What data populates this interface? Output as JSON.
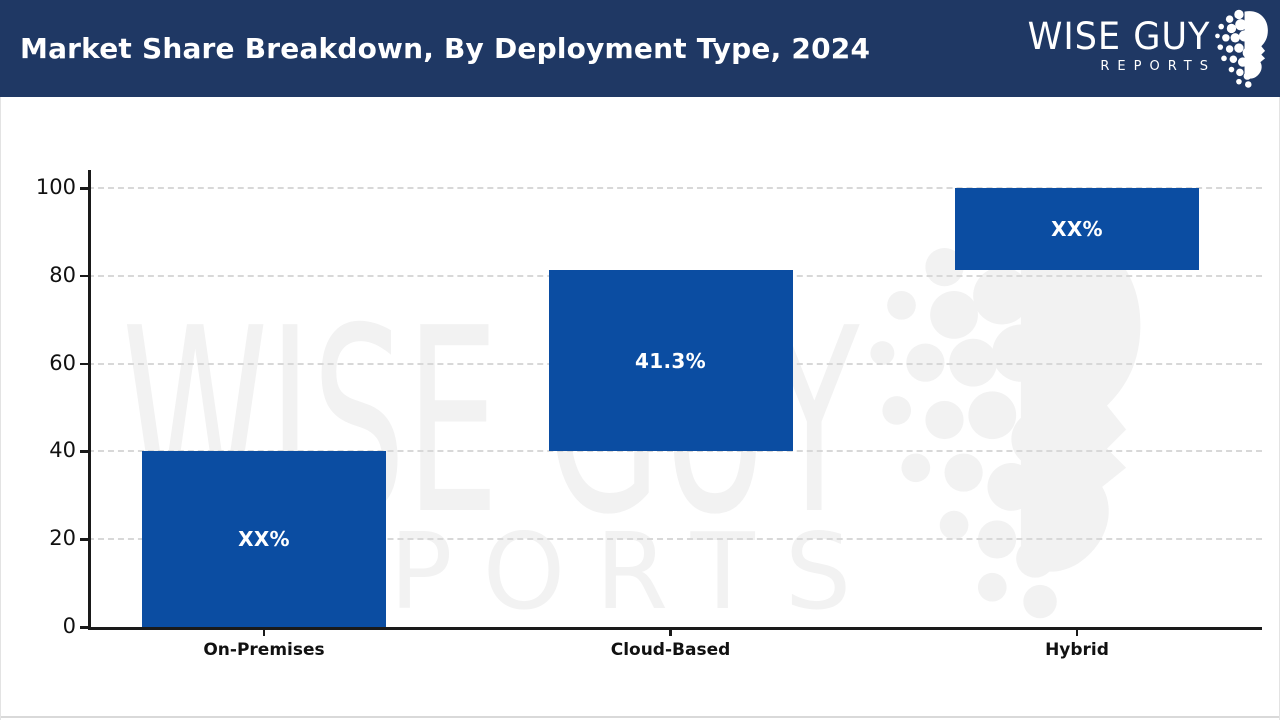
{
  "header": {
    "title": "Market Share Breakdown, By Deployment Type, 2024",
    "bg_color": "#1F3864",
    "logo": {
      "wordmark": "WISE GUY",
      "sub": "REPORTS",
      "face_icon": "dotted-face-profile"
    }
  },
  "watermark": {
    "wordmark": "WISE GUY",
    "sub": "REPORTS"
  },
  "chart_data": {
    "type": "bar",
    "subtype": "floating-waterfall",
    "title": "Market Share Breakdown, By Deployment Type, 2024",
    "categories": [
      "On-Premises",
      "Cloud-Based",
      "Hybrid"
    ],
    "segments": [
      {
        "category": "On-Premises",
        "start": 0,
        "end": 40,
        "label": "XX%"
      },
      {
        "category": "Cloud-Based",
        "start": 40,
        "end": 81.3,
        "label": "41.3%"
      },
      {
        "category": "Hybrid",
        "start": 81.3,
        "end": 100,
        "label": "XX%"
      }
    ],
    "values": [
      40,
      41.3,
      18.7
    ],
    "bar_labels": [
      "XX%",
      "41.3%",
      "XX%"
    ],
    "xlabel": "",
    "ylabel": "",
    "ylim": [
      0,
      100
    ],
    "yticks": [
      0,
      20,
      40,
      60,
      80,
      100
    ],
    "grid": "horizontal-dashed",
    "legend": "none",
    "bar_color": "#0B4DA2",
    "label_color": "#FFFFFF"
  }
}
